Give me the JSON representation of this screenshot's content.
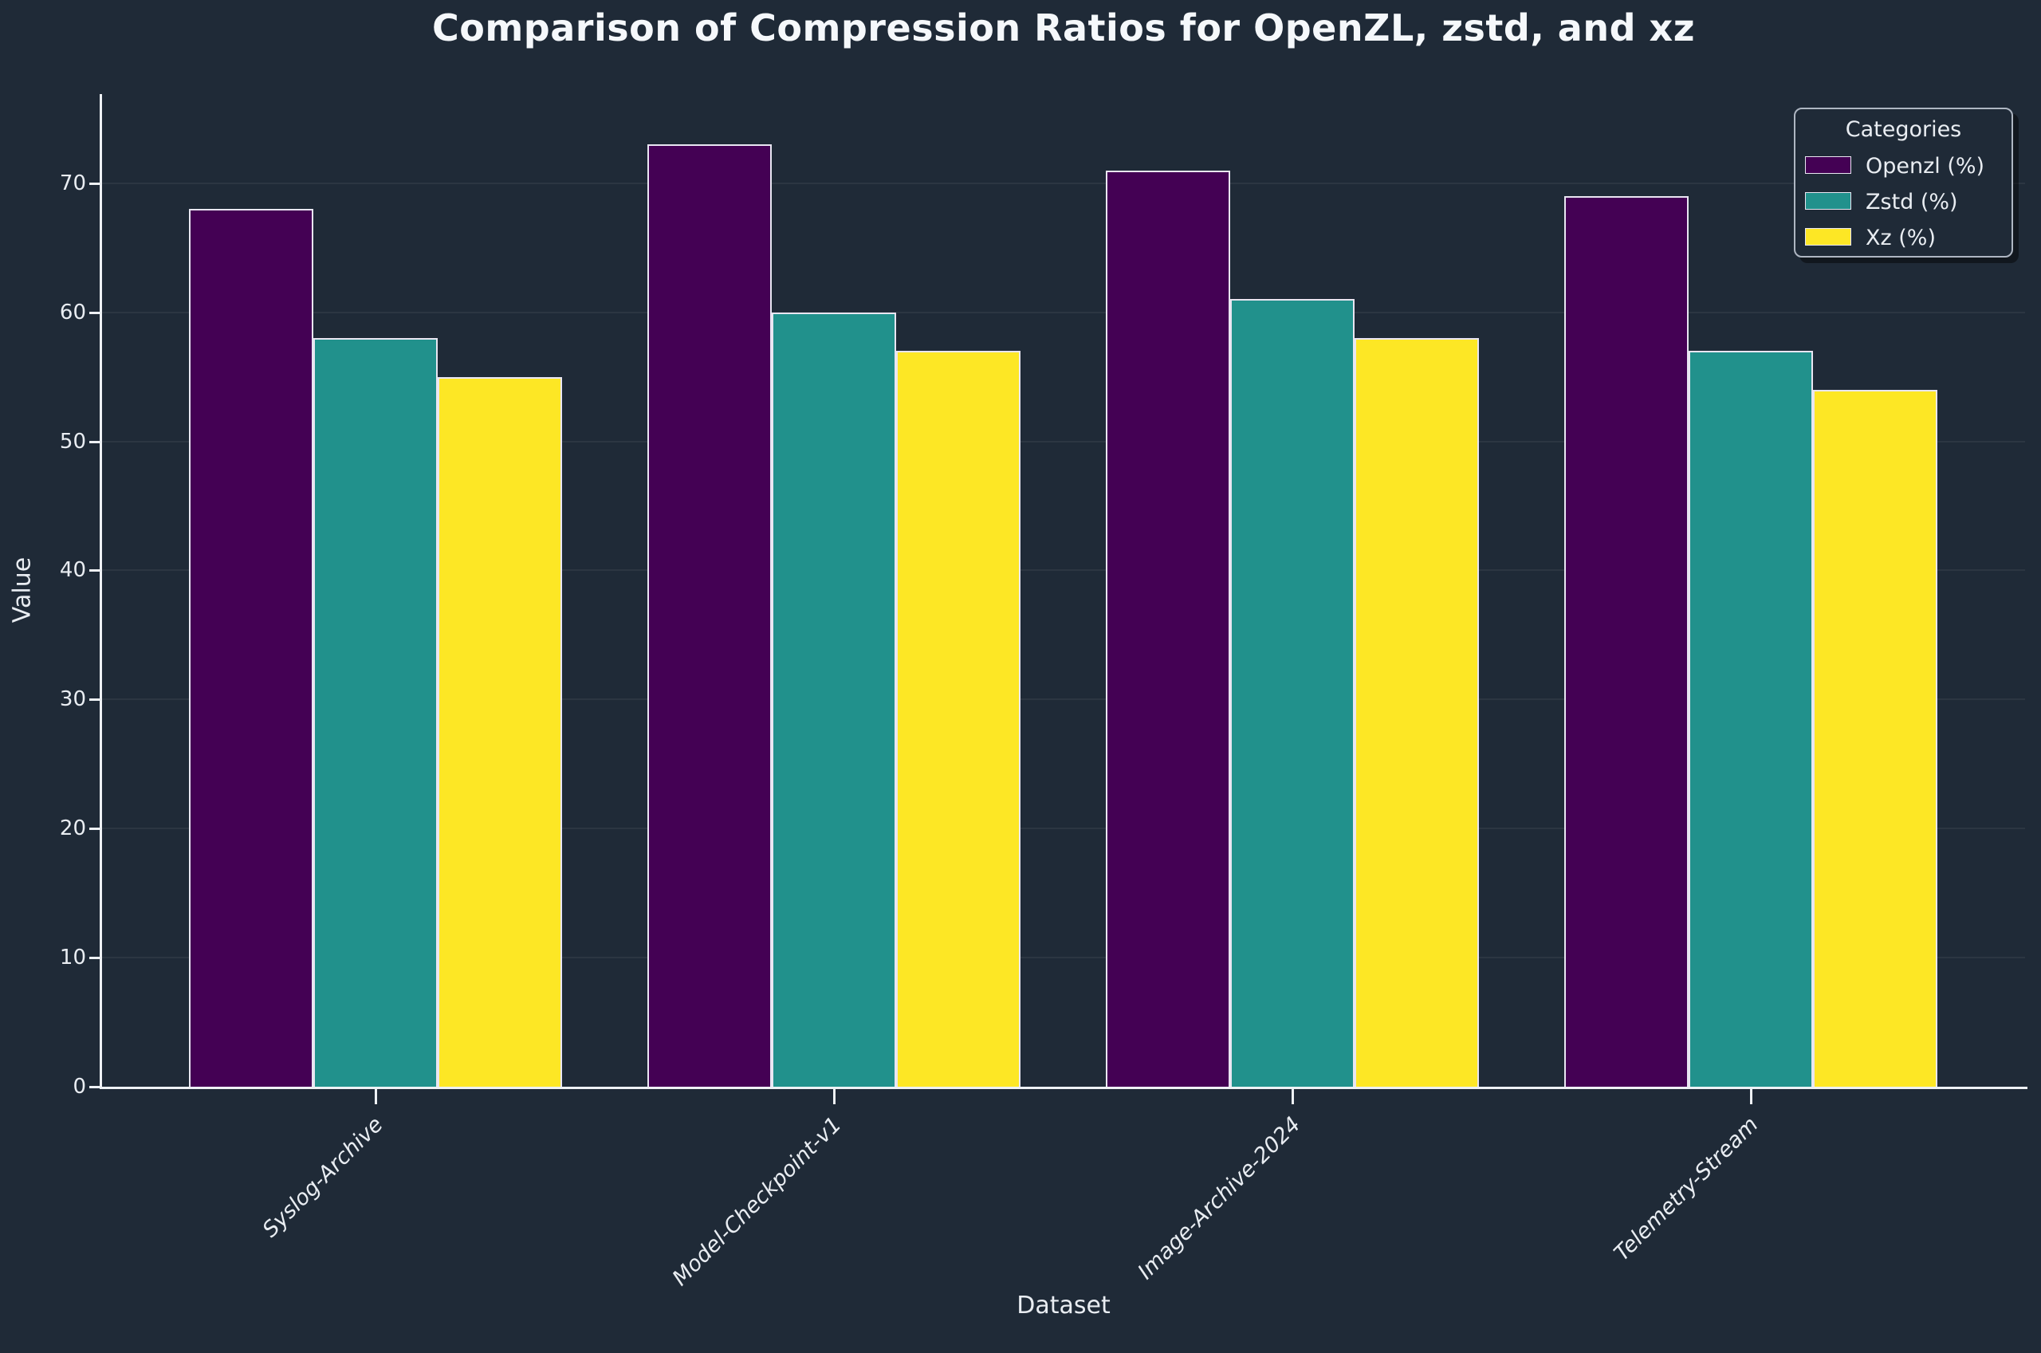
{
  "colors": {
    "background": "#1f2a37",
    "text": "#e9edf2",
    "title_text": "#f5f8fb",
    "gridline": "rgba(255,255,255,0.06)",
    "axis": "#eef1f5",
    "bar_edge": "#e9e6f2",
    "legend_border": "#aeb6c2"
  },
  "chart_data": {
    "type": "bar",
    "title": "Comparison of Compression Ratios for OpenZL, zstd, and xz",
    "xlabel": "Dataset",
    "ylabel": "Value",
    "categories": [
      "Syslog-Archive",
      "Model-Checkpoint-v1",
      "Image-Archive-2024",
      "Telemetry-Stream"
    ],
    "series": [
      {
        "name": "Openzl (%)",
        "color": "#440154",
        "values": [
          68,
          73,
          71,
          69
        ]
      },
      {
        "name": "Zstd (%)",
        "color": "#21918c",
        "values": [
          58,
          60,
          61,
          57
        ]
      },
      {
        "name": "Xz (%)",
        "color": "#fde725",
        "values": [
          55,
          57,
          58,
          54
        ]
      }
    ],
    "yticks": [
      0,
      10,
      20,
      30,
      40,
      50,
      60,
      70
    ],
    "ylim": [
      0,
      76.9
    ],
    "grid": true,
    "legend_title": "Categories",
    "legend_position": "upper right"
  }
}
